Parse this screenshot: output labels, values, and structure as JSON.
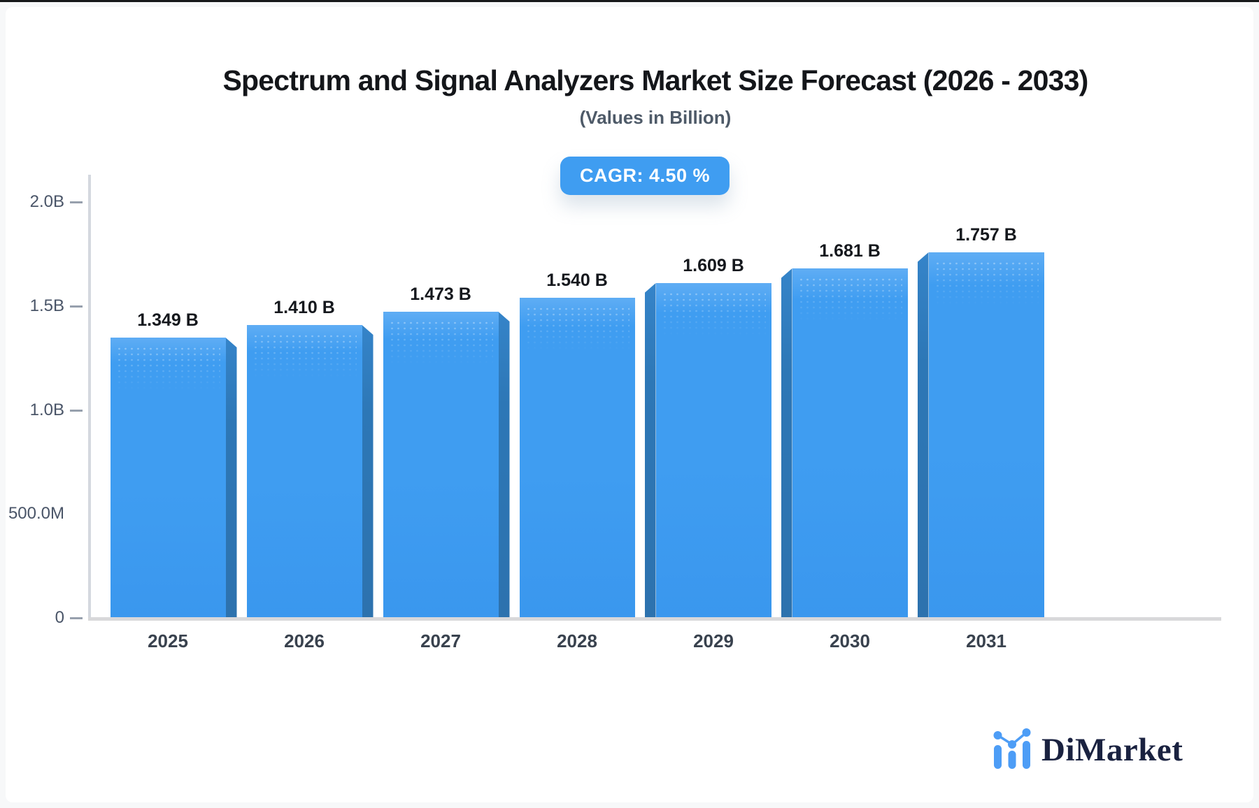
{
  "header": {
    "title": "Spectrum and Signal Analyzers Market Size Forecast (2026 - 2033)",
    "subtitle": "(Values in Billion)"
  },
  "badge": {
    "label": "CAGR: 4.50 %"
  },
  "footer": {
    "logo_text": "DiMarket"
  },
  "colors": {
    "accent_blue": "#3f9df1",
    "bar_face_top": "#5fadf4",
    "bar_face": "#3f9df1",
    "bar_face_bottom": "#3a97ee",
    "bar_side": "#2d77b6",
    "badge_bg": "#3f9df1",
    "logo_navy": "#1a2240",
    "logo_blue": "#4d9df6"
  },
  "chart_data": {
    "type": "bar",
    "title": "Spectrum and Signal Analyzers Market Size Forecast (2026 - 2033)",
    "subtitle": "(Values in Billion)",
    "categories": [
      "2025",
      "2026",
      "2027",
      "2028",
      "2029",
      "2030",
      "2031"
    ],
    "values": [
      1.349,
      1.41,
      1.473,
      1.54,
      1.609,
      1.681,
      1.757
    ],
    "value_labels": [
      "1.349 B",
      "1.410 B",
      "1.473 B",
      "1.540 B",
      "1.609 B",
      "1.681 B",
      "1.757 B"
    ],
    "xlabel": "",
    "ylabel": "",
    "ylim": [
      0,
      2.0
    ],
    "yticks": [
      {
        "label": "2.0B",
        "value": 2.0,
        "tick": true
      },
      {
        "label": "1.5B",
        "value": 1.5,
        "tick": true
      },
      {
        "label": "1.0B",
        "value": 1.0,
        "tick": true
      },
      {
        "label": "500.0M",
        "value": 0.5,
        "tick": false
      },
      {
        "label": "0",
        "value": 0.0,
        "tick": true
      }
    ],
    "grid": false,
    "legend": null,
    "style_3d": "center-perspective"
  }
}
